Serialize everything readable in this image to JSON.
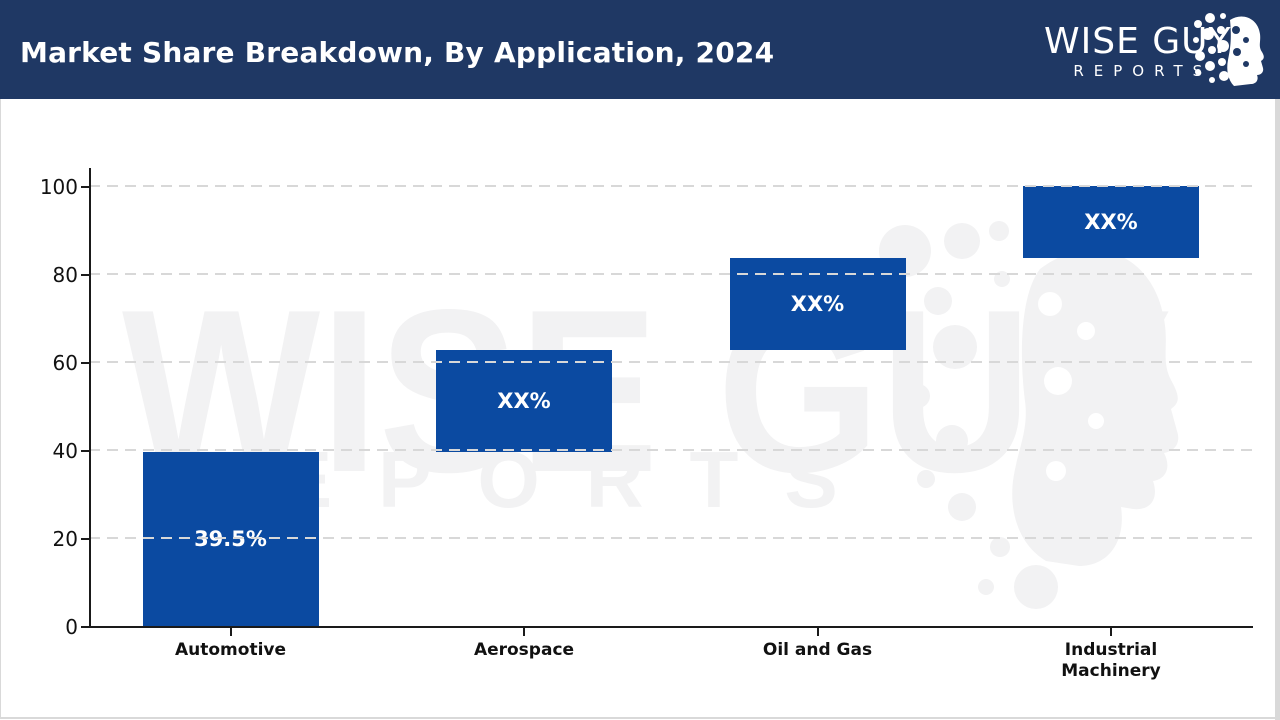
{
  "header": {
    "title": "Market Share Breakdown, By Application, 2024"
  },
  "logo": {
    "name": "WISE GUY",
    "subtitle": "REPORTS"
  },
  "watermark": {
    "line1": "WISE GUY",
    "line2": "REPORTS"
  },
  "theme": {
    "header_bg": "#1f3864",
    "bar_color": "#0b4aa1",
    "grid_color": "#d8d8d8",
    "axis_color": "#1a1a1a",
    "bar_label_color": "#ffffff",
    "watermark_color": "#f2f2f3"
  },
  "chart_data": {
    "type": "bar",
    "subtype": "waterfall-segments",
    "title": "Market Share Breakdown, By Application, 2024",
    "categories": [
      "Automotive",
      "Aerospace",
      "Oil and Gas",
      "Industrial Machinery"
    ],
    "series": [
      {
        "name": "Market Share",
        "segments": [
          {
            "category": "Automotive",
            "start": 0,
            "end": 39.5,
            "label": "39.5%"
          },
          {
            "category": "Aerospace",
            "start": 39.5,
            "end": 62.7,
            "label": "XX%"
          },
          {
            "category": "Oil and Gas",
            "start": 62.7,
            "end": 83.6,
            "label": "XX%"
          },
          {
            "category": "Industrial Machinery",
            "start": 83.6,
            "end": 100,
            "label": "XX%"
          }
        ]
      }
    ],
    "xlabel": "",
    "ylabel": "",
    "ylim": [
      0,
      100
    ],
    "yticks": [
      0,
      20,
      40,
      60,
      80,
      100
    ],
    "ytick_labels": [
      "0",
      "20",
      "40",
      "60",
      "80",
      "100"
    ],
    "grid": "horizontal dashed, drawn over bars",
    "legend": "none"
  }
}
